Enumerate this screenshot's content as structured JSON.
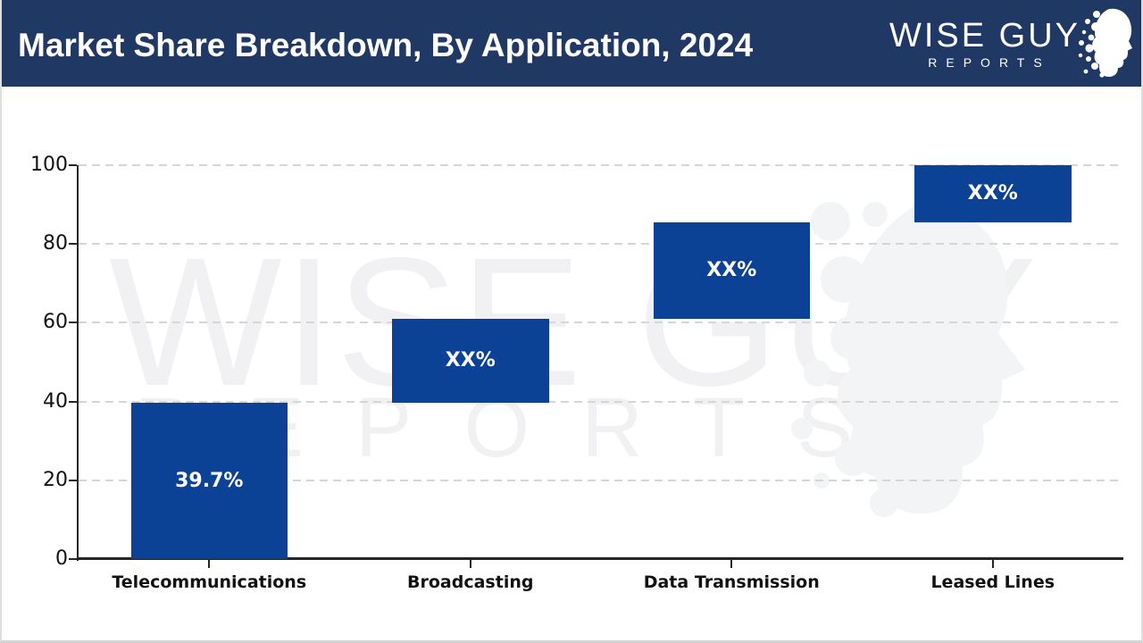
{
  "colors": {
    "header_bg": "#203864",
    "bar_fill": "#0b4296",
    "axis": "#262626",
    "gridline": "#d6d6d6",
    "watermark": "#f1f1f3",
    "bar_label": "#ffffff"
  },
  "header": {
    "title": "Market Share Breakdown, By Application, 2024",
    "logo": {
      "line1": "WISE GUY",
      "line2": "REPORTS"
    }
  },
  "watermark": {
    "line1": "WISE GUY",
    "line2": "REPORTS"
  },
  "chart_data": {
    "type": "bar",
    "subtype": "floating-segment waterfall of cumulative market share",
    "title": "Market Share Breakdown, By Application, 2024",
    "categories": [
      "Telecommunications",
      "Broadcasting",
      "Data Transmission",
      "Leased Lines"
    ],
    "bars": [
      {
        "category": "Telecommunications",
        "start": 0,
        "end": 39.7,
        "segment_size": 39.7,
        "value_label": "39.7%"
      },
      {
        "category": "Broadcasting",
        "start": 39.7,
        "end": 61,
        "segment_size": 21.3,
        "value_label": "XX%"
      },
      {
        "category": "Data Transmission",
        "start": 61,
        "end": 85.5,
        "segment_size": 24.5,
        "value_label": "XX%"
      },
      {
        "category": "Leased Lines",
        "start": 85.5,
        "end": 100,
        "segment_size": 14.5,
        "value_label": "XX%"
      }
    ],
    "xlabel": "",
    "ylabel": "",
    "ylim": [
      0,
      100
    ],
    "yticks": [
      0,
      20,
      40,
      60,
      80,
      100
    ],
    "grid": "horizontal dashed",
    "legend": false
  }
}
